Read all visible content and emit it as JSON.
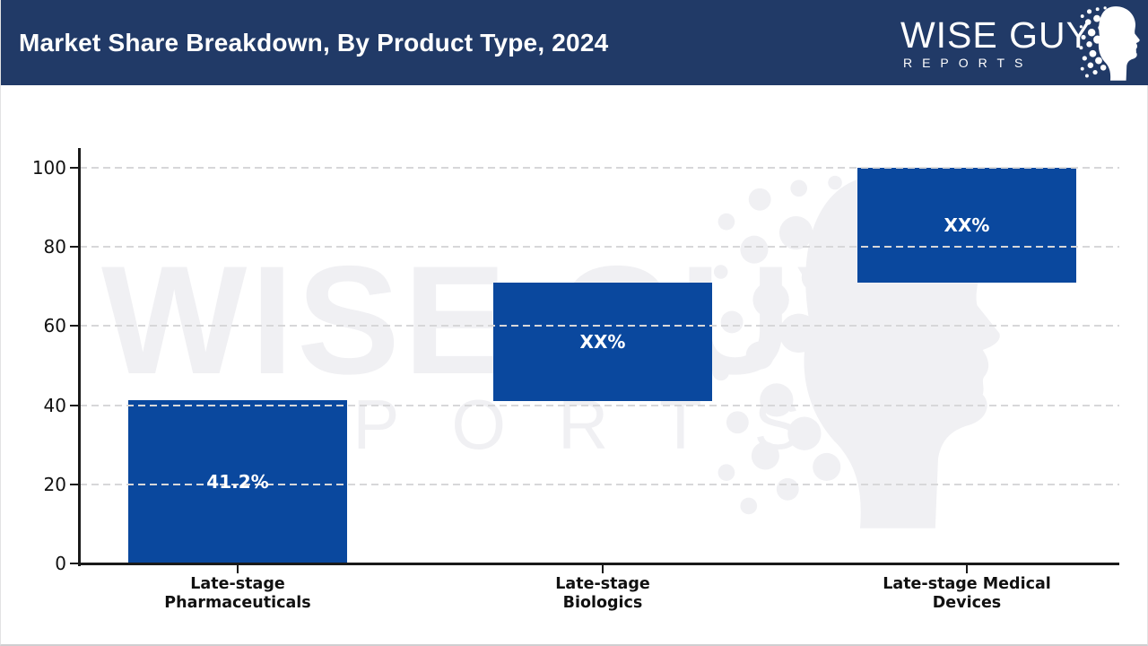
{
  "header": {
    "title": "Market Share Breakdown, By Product Type, 2024",
    "background_color": "#213a67",
    "logo": {
      "line1": "WISE GUY",
      "line2": "REPORTS"
    }
  },
  "watermark": {
    "line1": "WISE GUY",
    "line2": "REPORTS"
  },
  "chart_data": {
    "type": "bar",
    "variant": "floating-waterfall-segments",
    "title": "Market Share Breakdown, By Product Type, 2024",
    "categories": [
      "Late-stage Pharmaceuticals",
      "Late-stage Biologics",
      "Late-stage Medical Devices"
    ],
    "category_lines": [
      [
        "Late-stage",
        "Pharmaceuticals"
      ],
      [
        "Late-stage",
        "Biologics"
      ],
      [
        "Late-stage Medical",
        "Devices"
      ]
    ],
    "segments": [
      {
        "category": "Late-stage Pharmaceuticals",
        "start": 0,
        "end": 41.2,
        "label": "41.2%"
      },
      {
        "category": "Late-stage Biologics",
        "start": 41,
        "end": 71,
        "label": "XX%"
      },
      {
        "category": "Late-stage Medical Devices",
        "start": 71,
        "end": 100,
        "label": "XX%"
      }
    ],
    "ylim": [
      0,
      100
    ],
    "yticks": [
      0,
      20,
      40,
      60,
      80,
      100
    ],
    "grid": "dashed-horizontal",
    "legend": "none",
    "bar_color": "#0a489e",
    "bar_label_color": "#ffffff"
  }
}
